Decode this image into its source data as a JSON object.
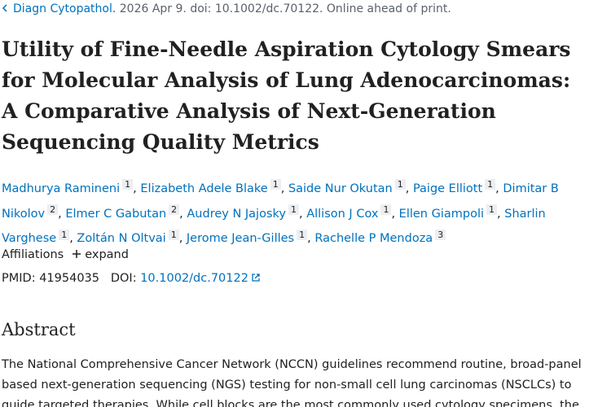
{
  "citation": {
    "journal": "Diagn Cytopathol.",
    "details": "2026 Apr 9. doi: 10.1002/dc.70122. Online ahead of print."
  },
  "title": "Utility of Fine-Needle Aspiration Cytology Smears for Molecular Analysis of Lung Adenocarcinomas: A Comparative Analysis of Next-Generation Sequencing Quality Metrics",
  "authors": {
    "separator": ",",
    "list": [
      {
        "name": "Madhurya Ramineni",
        "affiliation": "1"
      },
      {
        "name": "Elizabeth Adele Blake",
        "affiliation": "1"
      },
      {
        "name": "Saide Nur Okutan",
        "affiliation": "1"
      },
      {
        "name": "Paige Elliott",
        "affiliation": "1"
      },
      {
        "name": "Dimitar B Nikolov",
        "affiliation": "2"
      },
      {
        "name": "Elmer C Gabutan",
        "affiliation": "2"
      },
      {
        "name": "Audrey N Jajosky",
        "affiliation": "1"
      },
      {
        "name": "Allison J Cox",
        "affiliation": "1"
      },
      {
        "name": "Ellen Giampoli",
        "affiliation": "1"
      },
      {
        "name": "Sharlin Varghese",
        "affiliation": "1"
      },
      {
        "name": "Zoltán N Oltvai",
        "affiliation": "1"
      },
      {
        "name": "Jerome Jean-Gilles",
        "affiliation": "1"
      },
      {
        "name": "Rachelle P Mendoza",
        "affiliation": "3"
      }
    ]
  },
  "affiliations": {
    "label": "Affiliations",
    "toggle": "expand"
  },
  "identifiers": {
    "pmid_label": "PMID:",
    "pmid": "41954035",
    "doi_label": "DOI:",
    "doi": "10.1002/dc.70122"
  },
  "abstract": {
    "heading": "Abstract",
    "text": "The National Comprehensive Cancer Network (NCCN) guidelines recommend routine, broad-panel based next-generation sequencing (NGS) testing for non-small cell lung carcinomas (NSCLCs) to guide targeted therapies. While cell blocks are the most commonly used cytology specimens, the"
  }
}
